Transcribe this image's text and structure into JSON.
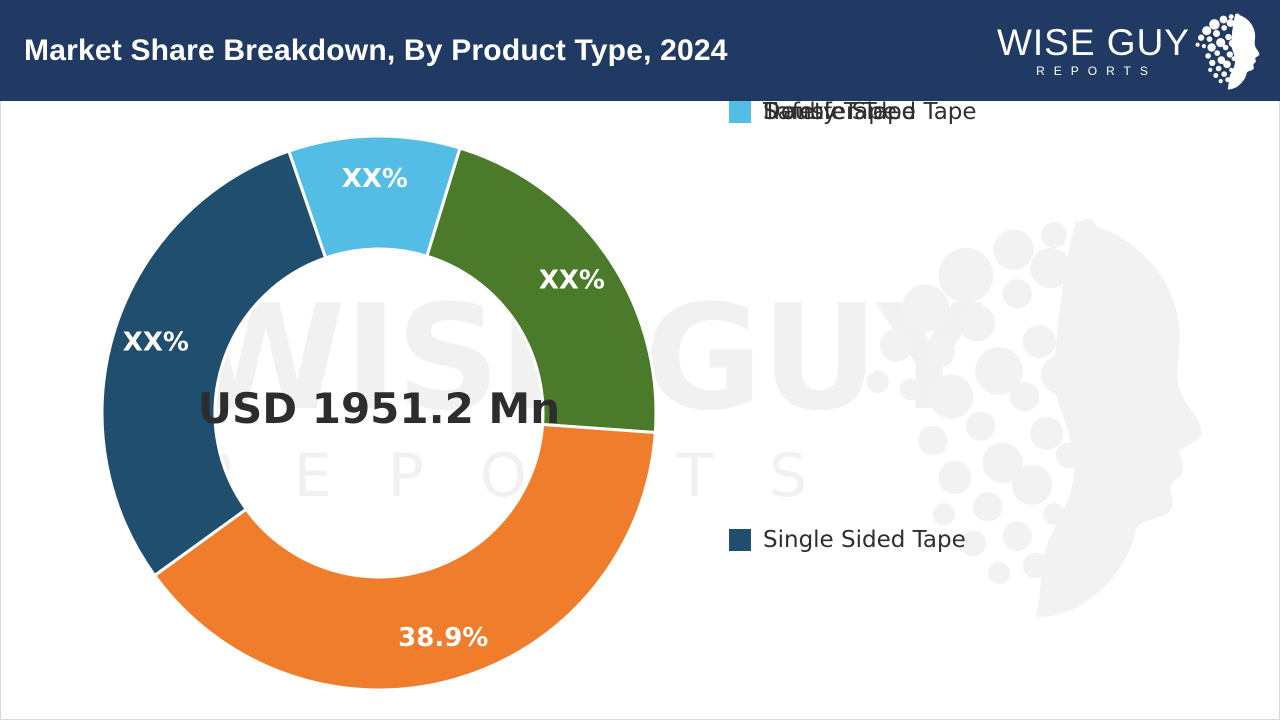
{
  "header": {
    "title": "Market Share Breakdown, By Product Type, 2024",
    "bg_color": "#213a64",
    "logo": {
      "line1": "WISE GUY",
      "line2": "REPORTS"
    }
  },
  "watermark": {
    "line1": "WISE GUY",
    "line2": "REPORTS",
    "color": "#f1f1f1"
  },
  "chart_data": {
    "type": "pie",
    "variant": "donut",
    "title": "Market Share Breakdown, By Product Type, 2024",
    "center_label": "USD 1951.2 Mn",
    "start_angle_deg": -19,
    "direction": "clockwise",
    "inner_radius_ratio": 0.59,
    "segments": [
      {
        "name": "Safety Tape",
        "label": "XX%",
        "value_pct": 10.0,
        "color": "#53bde5",
        "label_color": "#ffffff"
      },
      {
        "name": "Transfer Tape",
        "label": "XX%",
        "value_pct": 21.4,
        "color": "#4b7b2a",
        "label_color": "#ffffff"
      },
      {
        "name": "Double Sided Tape",
        "label": "38.9%",
        "value_pct": 38.9,
        "color": "#ef7d2c",
        "label_color": "#ffffff"
      },
      {
        "name": "Single Sided Tape",
        "label": "XX%",
        "value_pct": 29.7,
        "color": "#1f4e6e",
        "label_color": "#ffffff"
      }
    ],
    "legend_position": "right",
    "legend": [
      {
        "label": "Single Sided Tape",
        "color": "#1f4e6e"
      },
      {
        "label": "Double Sided Tape",
        "color": "#ef7d2c"
      },
      {
        "label": "Transfer Tape",
        "color": "#4b7b2a"
      },
      {
        "label": "Safety Tape",
        "color": "#53bde5"
      }
    ]
  }
}
